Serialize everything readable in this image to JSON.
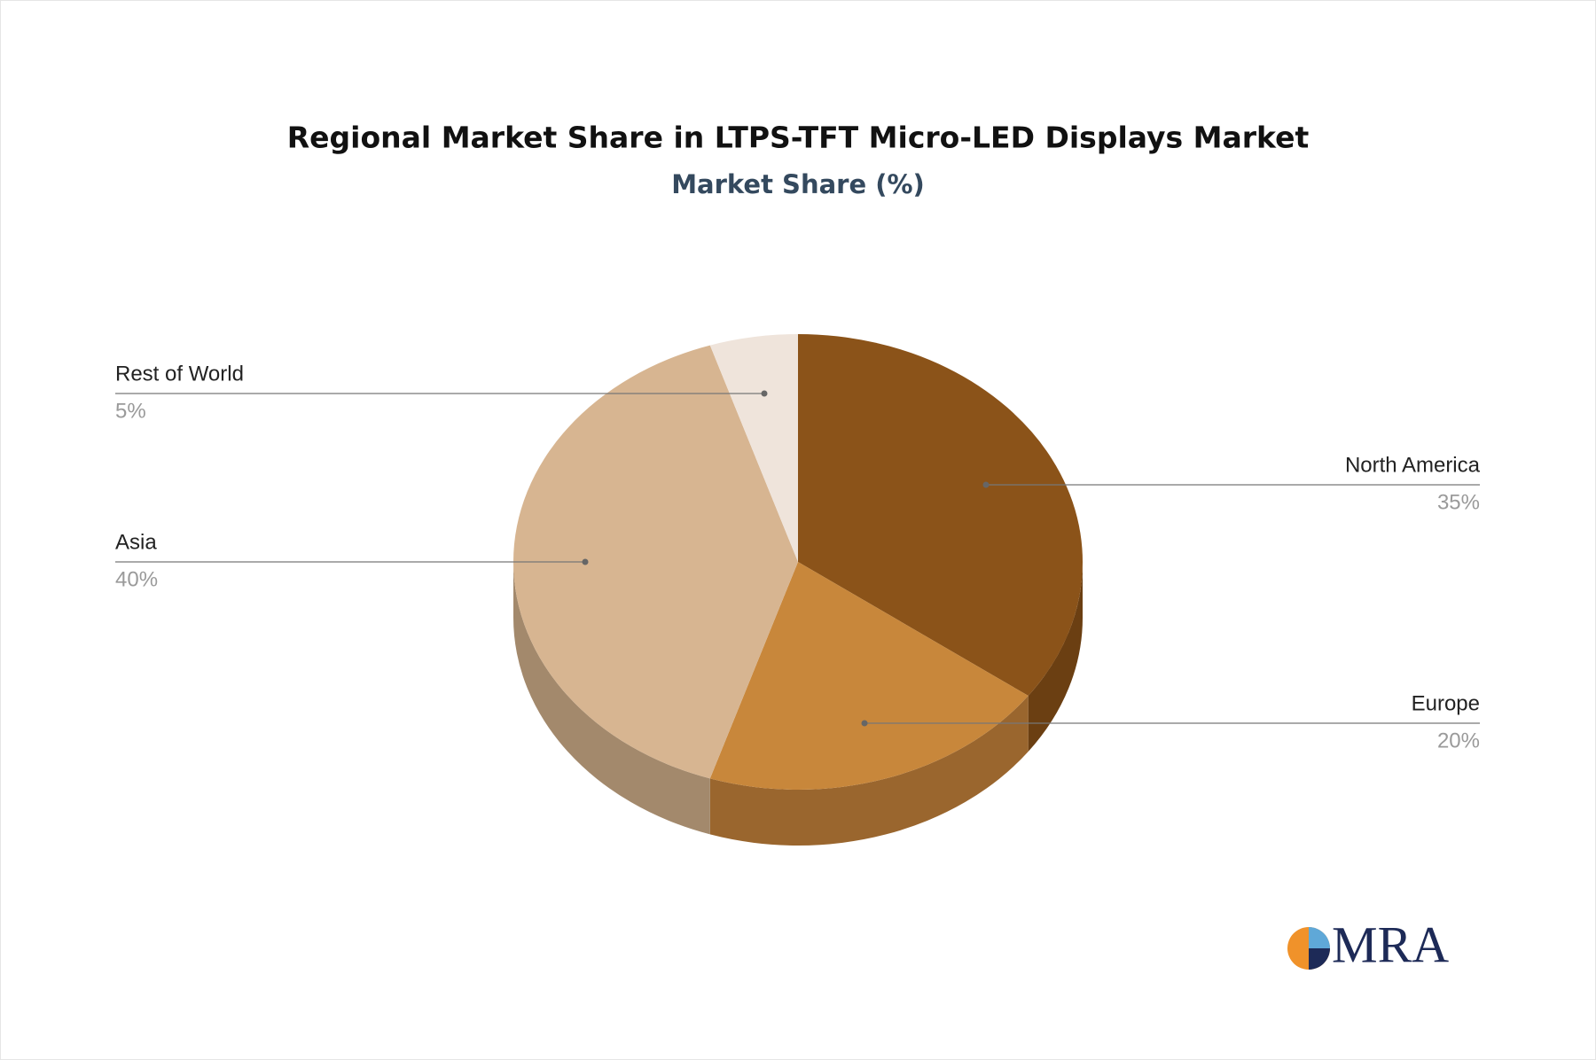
{
  "chart_data": {
    "type": "pie3d",
    "title": "Regional Market Share in LTPS-TFT Micro-LED Displays Market",
    "subtitle": "Market Share (%)",
    "categories": [
      "North America",
      "Europe",
      "Asia",
      "Rest of World"
    ],
    "values": [
      35,
      20,
      40,
      5
    ],
    "value_labels": [
      "35%",
      "20%",
      "40%",
      "5%"
    ],
    "colors": [
      "#8b5319",
      "#c8873b",
      "#d7b591",
      "#efe4db"
    ],
    "side_colors": [
      "#6b3f12",
      "#9a662e",
      "#a3896c",
      "#c9bcb1"
    ]
  },
  "logo": {
    "text": "MRA"
  }
}
